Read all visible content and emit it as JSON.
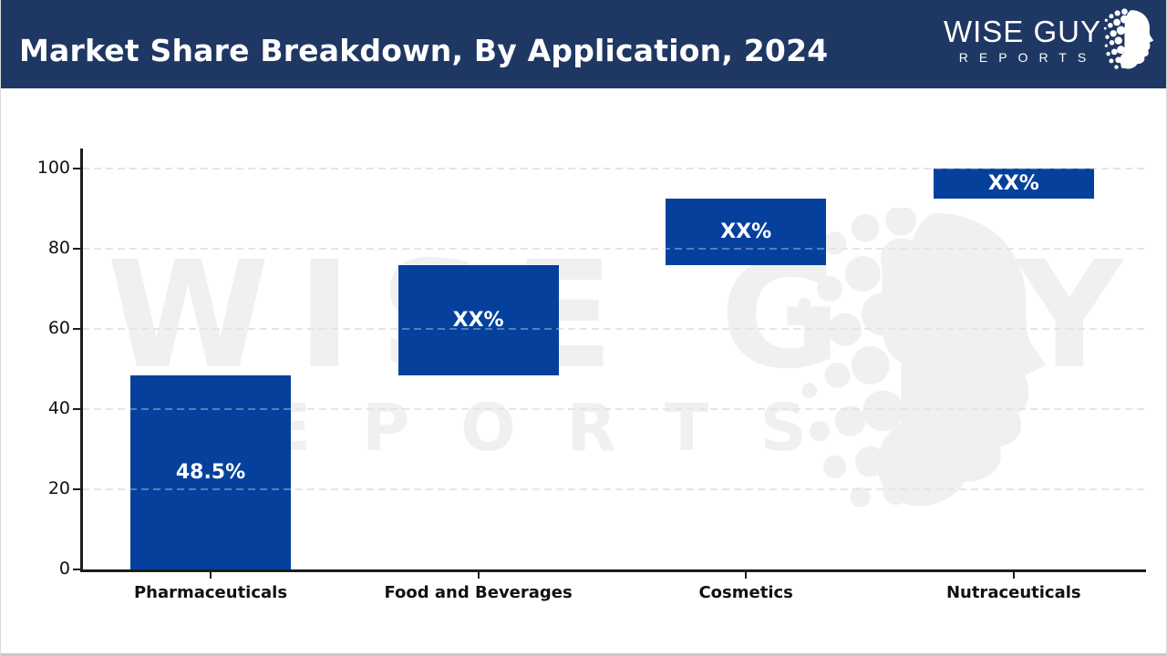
{
  "header": {
    "title": "Market Share Breakdown, By Application, 2024",
    "logo": {
      "name": "WISE GUY",
      "sub": "REPORTS"
    }
  },
  "watermark": {
    "line1": "WISE GUY",
    "line2": "REPORTS"
  },
  "colors": {
    "header_bg": "#1F3763",
    "bar": "#05419C",
    "axis": "#1C1C1C",
    "grid": "#D9D9D9",
    "watermark": "#F0F0F0",
    "bar_label_text": "#FFFFFF"
  },
  "chart_data": {
    "type": "bar",
    "subtype": "waterfall",
    "title": "Market Share Breakdown, By Application, 2024",
    "categories": [
      "Pharmaceuticals",
      "Food and Beverages",
      "Cosmetics",
      "Nutraceuticals"
    ],
    "cumulative_ranges": [
      [
        0,
        48.5
      ],
      [
        48.5,
        76
      ],
      [
        76,
        92.5
      ],
      [
        92.5,
        100
      ]
    ],
    "values": [
      48.5,
      27.5,
      16.5,
      7.5
    ],
    "bar_labels": [
      "48.5%",
      "XX%",
      "XX%",
      "XX%"
    ],
    "yticks": [
      0,
      20,
      40,
      60,
      80,
      100
    ],
    "ylim": [
      0,
      104
    ],
    "xlabel": "",
    "ylabel": "",
    "grid": "dashed-horizontal",
    "legend": "none",
    "bar_color": "#05419C"
  }
}
